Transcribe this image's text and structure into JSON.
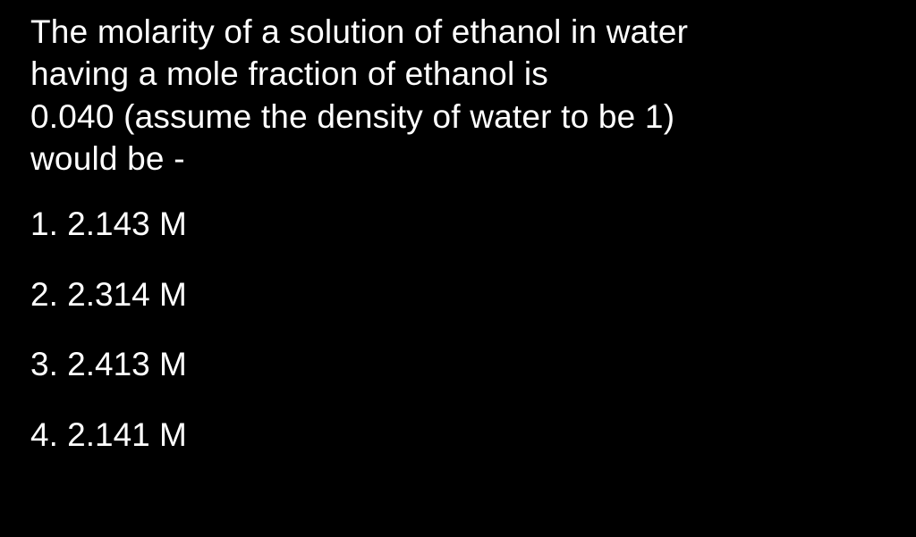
{
  "question": {
    "line1": "The molarity of a solution of ethanol in water",
    "line2": "having a mole fraction of ethanol is",
    "line3": "0.040 (assume the density of water to be 1)",
    "line4": "would be -"
  },
  "options": [
    {
      "number": "1.",
      "text": "2.143 M"
    },
    {
      "number": "2.",
      "text": "2.314 M"
    },
    {
      "number": "3.",
      "text": "2.413 M"
    },
    {
      "number": "4.",
      "text": "2.141 M"
    }
  ],
  "colors": {
    "background": "#000000",
    "text": "#ffffff"
  },
  "typography": {
    "font_family": "Arial, Helvetica, sans-serif",
    "question_fontsize": 37,
    "option_fontsize": 37
  }
}
